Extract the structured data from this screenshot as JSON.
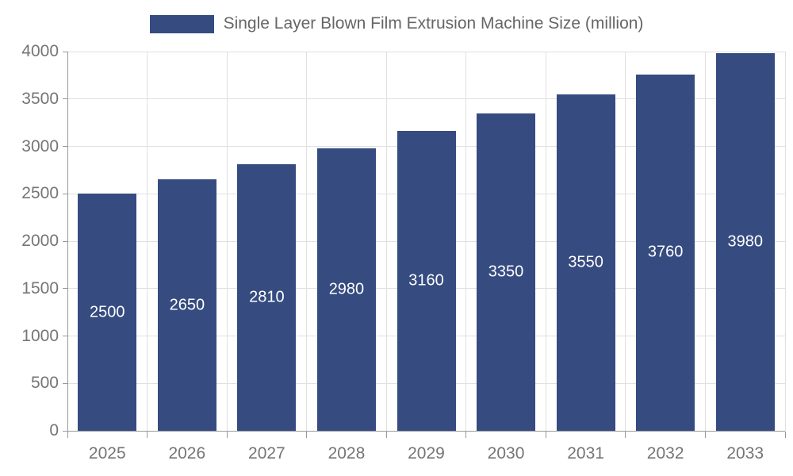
{
  "legend": {
    "label": "Single Layer Blown Film Extrusion Machine Size (million)"
  },
  "chart_data": {
    "type": "bar",
    "title": "Single Layer Blown Film Extrusion Machine Size (million)",
    "series_name": "Single Layer Blown Film Extrusion Machine Size (million)",
    "categories": [
      "2025",
      "2026",
      "2027",
      "2028",
      "2029",
      "2030",
      "2031",
      "2032",
      "2033"
    ],
    "values": [
      2500,
      2650,
      2810,
      2980,
      3160,
      3350,
      3550,
      3760,
      3980
    ],
    "value_labels": [
      "2500",
      "2650",
      "2810",
      "2980",
      "3160",
      "3350",
      "3550",
      "3760",
      "3980"
    ],
    "xlabel": "",
    "ylabel": "",
    "ylim": [
      0,
      4000
    ],
    "yticks": [
      0,
      500,
      1000,
      1500,
      2000,
      2500,
      3000,
      3500,
      4000
    ],
    "grid": true,
    "legend_position": "top-center",
    "colors": {
      "bar": "#364B80",
      "value_label": "#ffffff",
      "axis_text": "#757575",
      "legend_text": "#666666",
      "gridline": "#e0e0e0",
      "axis_line": "#999999",
      "background": "#ffffff"
    }
  }
}
